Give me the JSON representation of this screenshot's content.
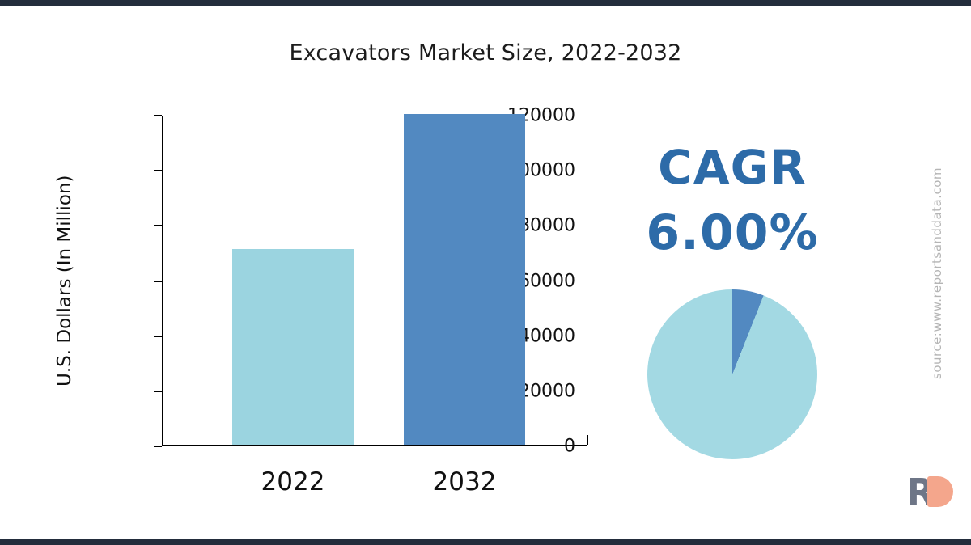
{
  "frame": {
    "bar_color": "#232d3c"
  },
  "chart_data": {
    "type": "bar",
    "title": "Excavators Market Size, 2022-2032",
    "categories": [
      "2022",
      "2032"
    ],
    "values": [
      71000,
      120000
    ],
    "bar_colors": [
      "#9bd4e0",
      "#5289c1"
    ],
    "xlabel": "",
    "ylabel": "U.S. Dollars (In Million)",
    "ylim": [
      0,
      120000
    ],
    "yticks": [
      0,
      20000,
      40000,
      60000,
      80000,
      100000,
      120000
    ],
    "grid": false,
    "legend": "none"
  },
  "cagr": {
    "label": "CAGR",
    "value": "6.00%",
    "percent": 6.0,
    "color": "#2d6ba8"
  },
  "pie": {
    "slices": [
      {
        "name": "cagr-share",
        "value": 6,
        "color": "#5289c1"
      },
      {
        "name": "remainder",
        "value": 94,
        "color": "#a3d9e3"
      }
    ]
  },
  "source": {
    "text": "source:www.reportsanddata.com"
  },
  "logo": {
    "letter": "R",
    "r_color": "#6e7687",
    "d_color": "#f4a68c"
  }
}
